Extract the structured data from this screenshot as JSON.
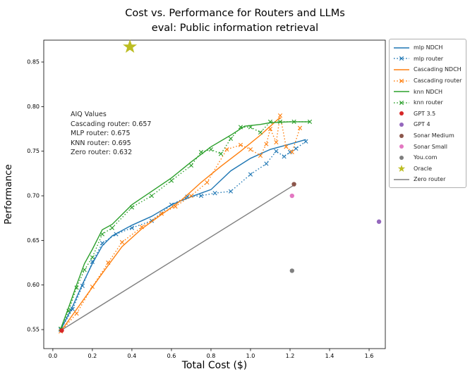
{
  "chart": {
    "title_line1": "Cost vs. Performance for Routers and LLMs",
    "title_line2": "eval: Public information retrieval",
    "xlabel": "Total Cost ($)",
    "ylabel": "Performance"
  },
  "annotation": {
    "lines": [
      "AIQ Values",
      "Cascading router: 0.657",
      "MLP router: 0.675",
      "KNN router: 0.695",
      "Zero router: 0.632"
    ]
  },
  "chart_data": {
    "type": "line",
    "title": "Cost vs. Performance for Routers and LLMs — eval: Public information retrieval",
    "xlabel": "Total Cost ($)",
    "ylabel": "Performance",
    "xlim": [
      -0.046,
      1.682
    ],
    "ylim": [
      0.5287,
      0.8745
    ],
    "grid": false,
    "legend_position": "outside-right",
    "xticks": [
      0.0,
      0.2,
      0.4,
      0.6,
      0.8,
      1.0,
      1.2,
      1.4,
      1.6
    ],
    "xtick_labels": [
      "0.0",
      "0.2",
      "0.4",
      "0.6",
      "0.8",
      "1.0",
      "1.2",
      "1.4",
      "1.6"
    ],
    "yticks": [
      0.55,
      0.6,
      0.65,
      0.7,
      0.75,
      0.8,
      0.85
    ],
    "ytick_labels": [
      "0.55",
      "0.60",
      "0.65",
      "0.70",
      "0.75",
      "0.80",
      "0.85"
    ],
    "series": [
      {
        "name": "mlp NDCH",
        "color": "#1f77b4",
        "style": "solid",
        "marker": "none",
        "x": [
          0.04,
          0.1,
          0.15,
          0.2,
          0.25,
          0.3,
          0.4,
          0.5,
          0.6,
          0.7,
          0.8,
          0.9,
          1.0,
          1.1,
          1.2,
          1.28
        ],
        "y": [
          0.55,
          0.576,
          0.601,
          0.624,
          0.644,
          0.655,
          0.667,
          0.677,
          0.69,
          0.699,
          0.707,
          0.728,
          0.742,
          0.752,
          0.758,
          0.763
        ]
      },
      {
        "name": "mlp router",
        "color": "#1f77b4",
        "style": "dotted",
        "marker": "x",
        "x": [
          0.04,
          0.1,
          0.15,
          0.2,
          0.25,
          0.32,
          0.4,
          0.5,
          0.6,
          0.68,
          0.75,
          0.82,
          0.9,
          1.0,
          1.08,
          1.13,
          1.17,
          1.2,
          1.23,
          1.28
        ],
        "y": [
          0.55,
          0.573,
          0.599,
          0.626,
          0.647,
          0.657,
          0.664,
          0.672,
          0.69,
          0.699,
          0.7,
          0.703,
          0.705,
          0.724,
          0.736,
          0.75,
          0.744,
          0.749,
          0.753,
          0.761
        ]
      },
      {
        "name": "Cascading NDCH",
        "color": "#ff7f0e",
        "style": "solid",
        "marker": "none",
        "x": [
          0.04,
          0.15,
          0.25,
          0.35,
          0.45,
          0.55,
          0.65,
          0.75,
          0.85,
          0.95,
          1.05,
          1.15
        ],
        "y": [
          0.548,
          0.582,
          0.613,
          0.643,
          0.663,
          0.679,
          0.695,
          0.715,
          0.733,
          0.75,
          0.768,
          0.788
        ]
      },
      {
        "name": "Cascading router",
        "color": "#ff7f0e",
        "style": "dotted",
        "marker": "x",
        "x": [
          0.04,
          0.12,
          0.2,
          0.28,
          0.35,
          0.45,
          0.55,
          0.62,
          0.7,
          0.78,
          0.88,
          0.95,
          1.0,
          1.05,
          1.08,
          1.1,
          1.13,
          1.15,
          1.18,
          1.21,
          1.25
        ],
        "y": [
          0.548,
          0.568,
          0.598,
          0.625,
          0.648,
          0.665,
          0.68,
          0.688,
          0.7,
          0.715,
          0.752,
          0.757,
          0.752,
          0.745,
          0.758,
          0.775,
          0.76,
          0.79,
          0.755,
          0.749,
          0.776
        ]
      },
      {
        "name": "knn NDCH",
        "color": "#2ca02c",
        "style": "solid",
        "marker": "none",
        "x": [
          0.04,
          0.08,
          0.12,
          0.16,
          0.2,
          0.25,
          0.3,
          0.4,
          0.5,
          0.6,
          0.7,
          0.8,
          0.9,
          0.97,
          1.05,
          1.1,
          1.2,
          1.3
        ],
        "y": [
          0.551,
          0.575,
          0.6,
          0.624,
          0.64,
          0.662,
          0.668,
          0.69,
          0.705,
          0.72,
          0.738,
          0.755,
          0.768,
          0.778,
          0.78,
          0.782,
          0.783,
          0.783
        ]
      },
      {
        "name": "knn router",
        "color": "#2ca02c",
        "style": "dotted",
        "marker": "x",
        "x": [
          0.04,
          0.08,
          0.12,
          0.16,
          0.2,
          0.25,
          0.3,
          0.4,
          0.5,
          0.6,
          0.7,
          0.75,
          0.8,
          0.85,
          0.9,
          0.95,
          1.0,
          1.05,
          1.1,
          1.15,
          1.22,
          1.3
        ],
        "y": [
          0.551,
          0.571,
          0.597,
          0.617,
          0.631,
          0.657,
          0.664,
          0.687,
          0.7,
          0.717,
          0.734,
          0.749,
          0.752,
          0.747,
          0.764,
          0.777,
          0.777,
          0.771,
          0.783,
          0.783,
          0.783,
          0.783
        ]
      },
      {
        "name": "Zero router",
        "color": "#7f7f7f",
        "style": "solid",
        "marker": "none",
        "x": [
          0.04,
          1.22
        ],
        "y": [
          0.549,
          0.712
        ]
      }
    ],
    "points": [
      {
        "name": "GPT 3.5",
        "color": "#d62728",
        "marker": "dot",
        "x": 0.045,
        "y": 0.549
      },
      {
        "name": "GPT 4",
        "color": "#9467bd",
        "marker": "dot",
        "x": 1.65,
        "y": 0.671
      },
      {
        "name": "Sonar Medium",
        "color": "#8c564b",
        "marker": "dot",
        "x": 1.22,
        "y": 0.713
      },
      {
        "name": "Sonar Small",
        "color": "#e377c2",
        "marker": "dot",
        "x": 1.21,
        "y": 0.7
      },
      {
        "name": "You.com",
        "color": "#7f7f7f",
        "marker": "dot",
        "x": 1.21,
        "y": 0.616
      },
      {
        "name": "Oracle",
        "color": "#bcbd22",
        "marker": "star",
        "x": 0.39,
        "y": 0.867
      }
    ],
    "legend": [
      {
        "label": "mlp NDCH",
        "color": "#1f77b4",
        "kind": "line"
      },
      {
        "label": "mlp router",
        "color": "#1f77b4",
        "kind": "dotted-x"
      },
      {
        "label": "Cascading NDCH",
        "color": "#ff7f0e",
        "kind": "line"
      },
      {
        "label": "Cascading router",
        "color": "#ff7f0e",
        "kind": "dotted-x"
      },
      {
        "label": "knn NDCH",
        "color": "#2ca02c",
        "kind": "line"
      },
      {
        "label": "knn router",
        "color": "#2ca02c",
        "kind": "dotted-x"
      },
      {
        "label": "GPT 3.5",
        "color": "#d62728",
        "kind": "dot"
      },
      {
        "label": "GPT 4",
        "color": "#9467bd",
        "kind": "dot"
      },
      {
        "label": "Sonar Medium",
        "color": "#8c564b",
        "kind": "dot"
      },
      {
        "label": "Sonar Small",
        "color": "#e377c2",
        "kind": "dot"
      },
      {
        "label": "You.com",
        "color": "#7f7f7f",
        "kind": "dot"
      },
      {
        "label": "Oracle",
        "color": "#bcbd22",
        "kind": "star"
      },
      {
        "label": "Zero router",
        "color": "#7f7f7f",
        "kind": "line"
      }
    ]
  }
}
